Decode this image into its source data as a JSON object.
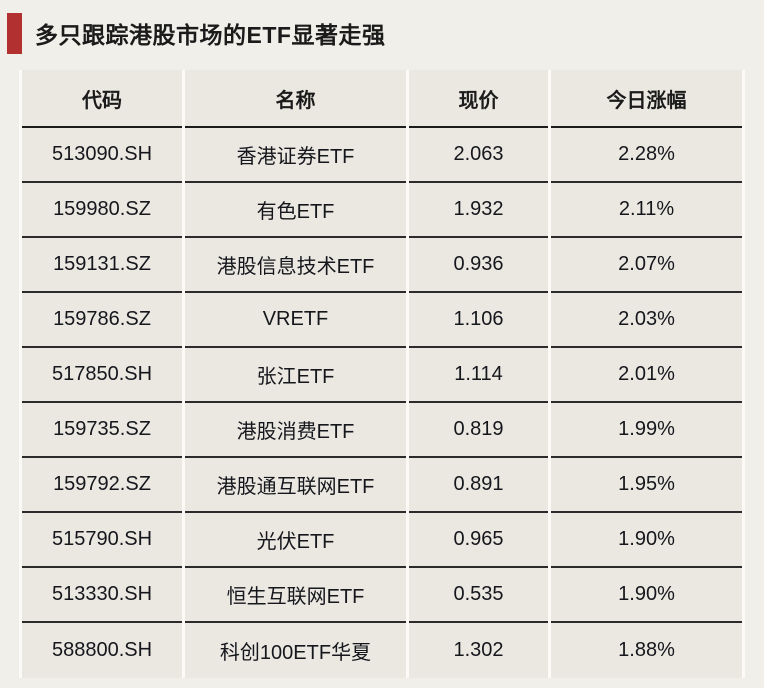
{
  "header": {
    "title": "多只跟踪港股市场的ETF显著走强"
  },
  "table": {
    "columns": [
      "代码",
      "名称",
      "现价",
      "今日涨幅"
    ],
    "rows": [
      {
        "code": "513090.SH",
        "name": "香港证券ETF",
        "price": "2.063",
        "change": "2.28%"
      },
      {
        "code": "159980.SZ",
        "name": "有色ETF",
        "price": "1.932",
        "change": "2.11%"
      },
      {
        "code": "159131.SZ",
        "name": "港股信息技术ETF",
        "price": "0.936",
        "change": "2.07%"
      },
      {
        "code": "159786.SZ",
        "name": "VRETF",
        "price": "1.106",
        "change": "2.03%"
      },
      {
        "code": "517850.SH",
        "name": "张江ETF",
        "price": "1.114",
        "change": "2.01%"
      },
      {
        "code": "159735.SZ",
        "name": "港股消费ETF",
        "price": "0.819",
        "change": "1.99%"
      },
      {
        "code": "159792.SZ",
        "name": "港股通互联网ETF",
        "price": "0.891",
        "change": "1.95%"
      },
      {
        "code": "515790.SH",
        "name": "光伏ETF",
        "price": "0.965",
        "change": "1.90%"
      },
      {
        "code": "513330.SH",
        "name": "恒生互联网ETF",
        "price": "0.535",
        "change": "1.90%"
      },
      {
        "code": "588800.SH",
        "name": "科创100ETF华夏",
        "price": "1.302",
        "change": "1.88%"
      }
    ]
  },
  "chart_data": {
    "type": "table",
    "title": "多只跟踪港股市场的ETF显著走强",
    "columns": [
      "代码",
      "名称",
      "现价",
      "今日涨幅"
    ],
    "rows": [
      [
        "513090.SH",
        "香港证券ETF",
        "2.063",
        "2.28%"
      ],
      [
        "159980.SZ",
        "有色ETF",
        "1.932",
        "2.11%"
      ],
      [
        "159131.SZ",
        "港股信息技术ETF",
        "0.936",
        "2.07%"
      ],
      [
        "159786.SZ",
        "VRETF",
        "1.106",
        "2.03%"
      ],
      [
        "517850.SH",
        "张江ETF",
        "1.114",
        "2.01%"
      ],
      [
        "159735.SZ",
        "港股消费ETF",
        "0.819",
        "1.99%"
      ],
      [
        "159792.SZ",
        "港股通互联网ETF",
        "0.891",
        "1.95%"
      ],
      [
        "515790.SH",
        "光伏ETF",
        "0.965",
        "1.90%"
      ],
      [
        "513330.SH",
        "恒生互联网ETF",
        "0.535",
        "1.90%"
      ],
      [
        "588800.SH",
        "科创100ETF华夏",
        "1.302",
        "1.88%"
      ]
    ]
  },
  "colors": {
    "accent_bar": "#b23030",
    "page_background": "#f1efe9",
    "cell_background": "#ebe8e2",
    "separator_line": "#2b2b2b",
    "column_gap": "#fbfaf7",
    "text": "#15171c"
  }
}
